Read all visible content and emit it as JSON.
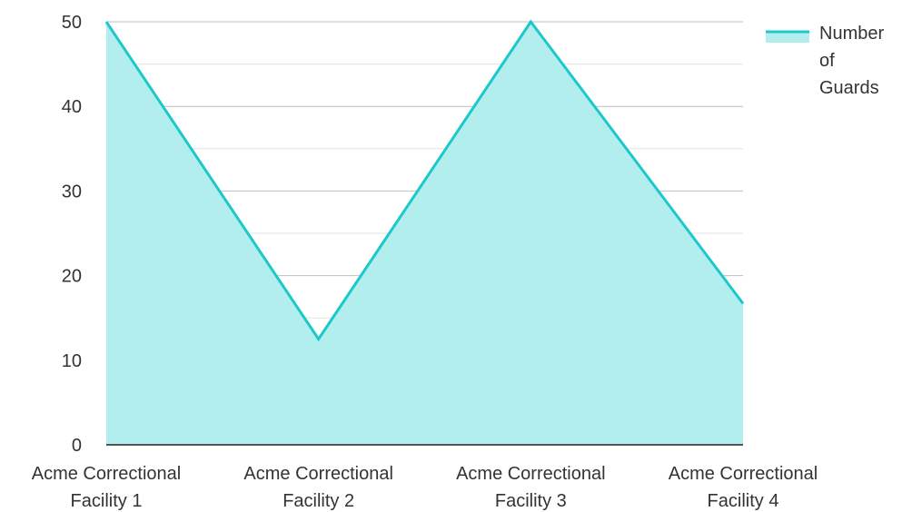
{
  "chart_data": {
    "type": "area",
    "categories": [
      [
        "Acme Correctional",
        "Facility 1"
      ],
      [
        "Acme Correctional",
        "Facility 2"
      ],
      [
        "Acme Correctional",
        "Facility 3"
      ],
      [
        "Acme Correctional",
        "Facility 4"
      ]
    ],
    "series": [
      {
        "name": "Number of Guards",
        "values": [
          50,
          12.5,
          50,
          16.7
        ]
      }
    ],
    "ylim": [
      0,
      50
    ],
    "yticks": [
      0,
      10,
      20,
      30,
      40,
      50
    ],
    "grid": true,
    "legend": {
      "position": "top-right",
      "lines": [
        "Number",
        "of",
        "Guards"
      ]
    },
    "colors": {
      "line": "#1cc8cc",
      "fill": "#b2eeee",
      "grid_major": "#bfbfbf",
      "grid_minor": "#e3e3e3",
      "axis": "#222222"
    }
  }
}
